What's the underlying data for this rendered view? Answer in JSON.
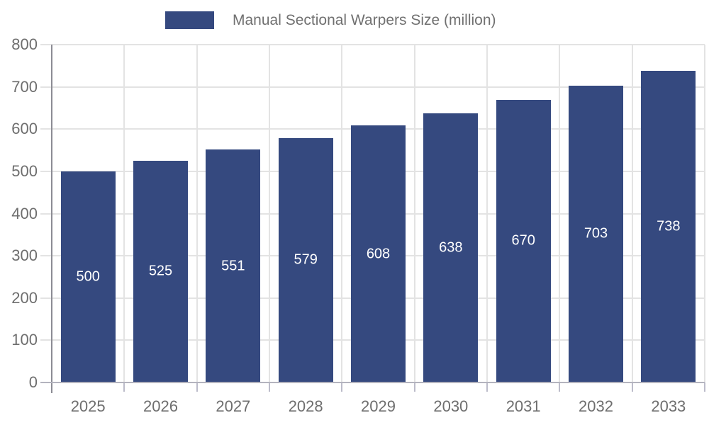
{
  "chart_data": {
    "type": "bar",
    "title": "",
    "legend_label": "Manual Sectional Warpers Size (million)",
    "categories": [
      "2025",
      "2026",
      "2027",
      "2028",
      "2029",
      "2030",
      "2031",
      "2032",
      "2033"
    ],
    "values": [
      500,
      525,
      551,
      579,
      608,
      638,
      670,
      703,
      738
    ],
    "xlabel": "",
    "ylabel": "",
    "ylim": [
      0,
      800
    ],
    "ytick_step": 100,
    "grid": true,
    "legend_position": "top-center",
    "bar_color": "#35497F",
    "value_label_color": "#FFFFFF",
    "tick_label_color": "#6E6E6E",
    "legend_text_color": "#707070",
    "grid_color": "#E3E3E3",
    "axis_line_color": "#8C8C94"
  }
}
